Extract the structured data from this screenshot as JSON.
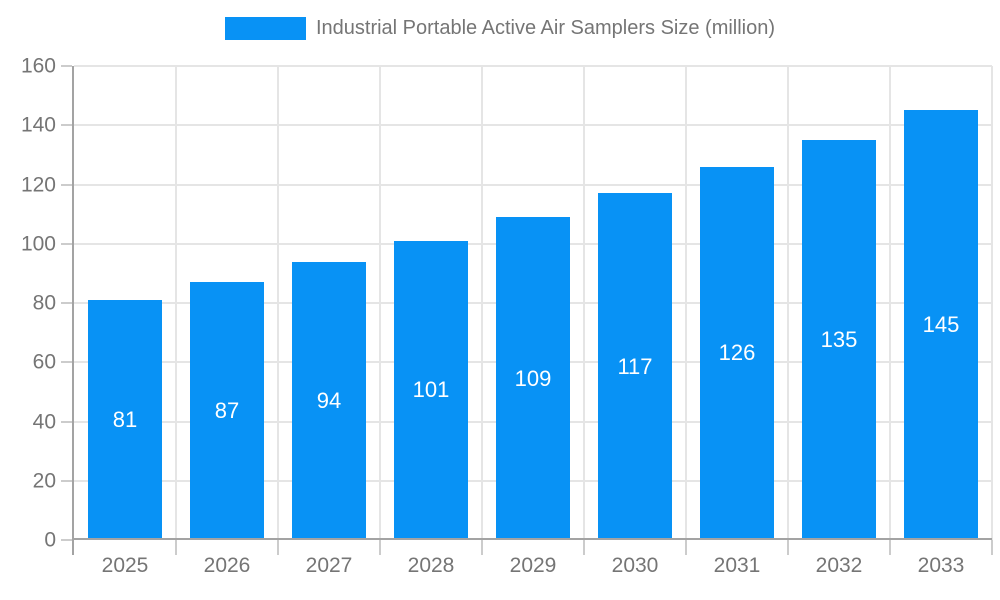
{
  "colors": {
    "bar": "#0892f5",
    "grid": "#e5e5e5",
    "axis": "#a3a3a3",
    "tick": "#cccccc",
    "axis_text": "#757575",
    "value_text": "#ffffff",
    "background": "#ffffff"
  },
  "chart_data": {
    "type": "bar",
    "title": "Industrial Portable Active Air Samplers Size (million)",
    "categories": [
      "2025",
      "2026",
      "2027",
      "2028",
      "2029",
      "2030",
      "2031",
      "2032",
      "2033"
    ],
    "values": [
      81,
      87,
      94,
      101,
      109,
      117,
      126,
      135,
      145
    ],
    "xlabel": "",
    "ylabel": "",
    "ylim": [
      0,
      160
    ],
    "yticks": [
      0,
      20,
      40,
      60,
      80,
      100,
      120,
      140,
      160
    ],
    "grid": true,
    "vertical_grid": true,
    "legend_position": "top-center",
    "value_labels": "inside-center"
  }
}
